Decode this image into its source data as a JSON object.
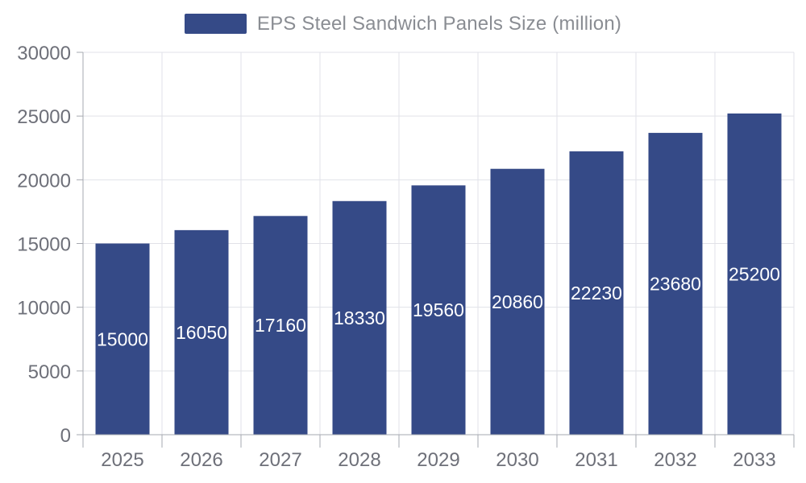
{
  "chart_data": {
    "type": "bar",
    "title": "",
    "series_name": "EPS Steel Sandwich Panels Size (million)",
    "categories": [
      "2025",
      "2026",
      "2027",
      "2028",
      "2029",
      "2030",
      "2031",
      "2032",
      "2033"
    ],
    "values": [
      15000,
      16050,
      17160,
      18330,
      19560,
      20860,
      22230,
      23680,
      25200
    ],
    "xlabel": "",
    "ylabel": "",
    "ylim": [
      0,
      30000
    ],
    "ytick_interval": 5000,
    "ytick_labels": [
      "0",
      "5000",
      "10000",
      "15000",
      "20000",
      "25000",
      "30000"
    ],
    "grid": true,
    "legend_position": "top-center",
    "value_labels_position": "inside-middle",
    "colors": {
      "bar": "#354A87",
      "value_label": "#FFFFFF",
      "axis_label": "#6E7079",
      "legend_text": "#8A8D93",
      "grid_line": "#E1E2E8",
      "axis_line": "#A6A9B0",
      "background": "#FFFFFF"
    }
  }
}
